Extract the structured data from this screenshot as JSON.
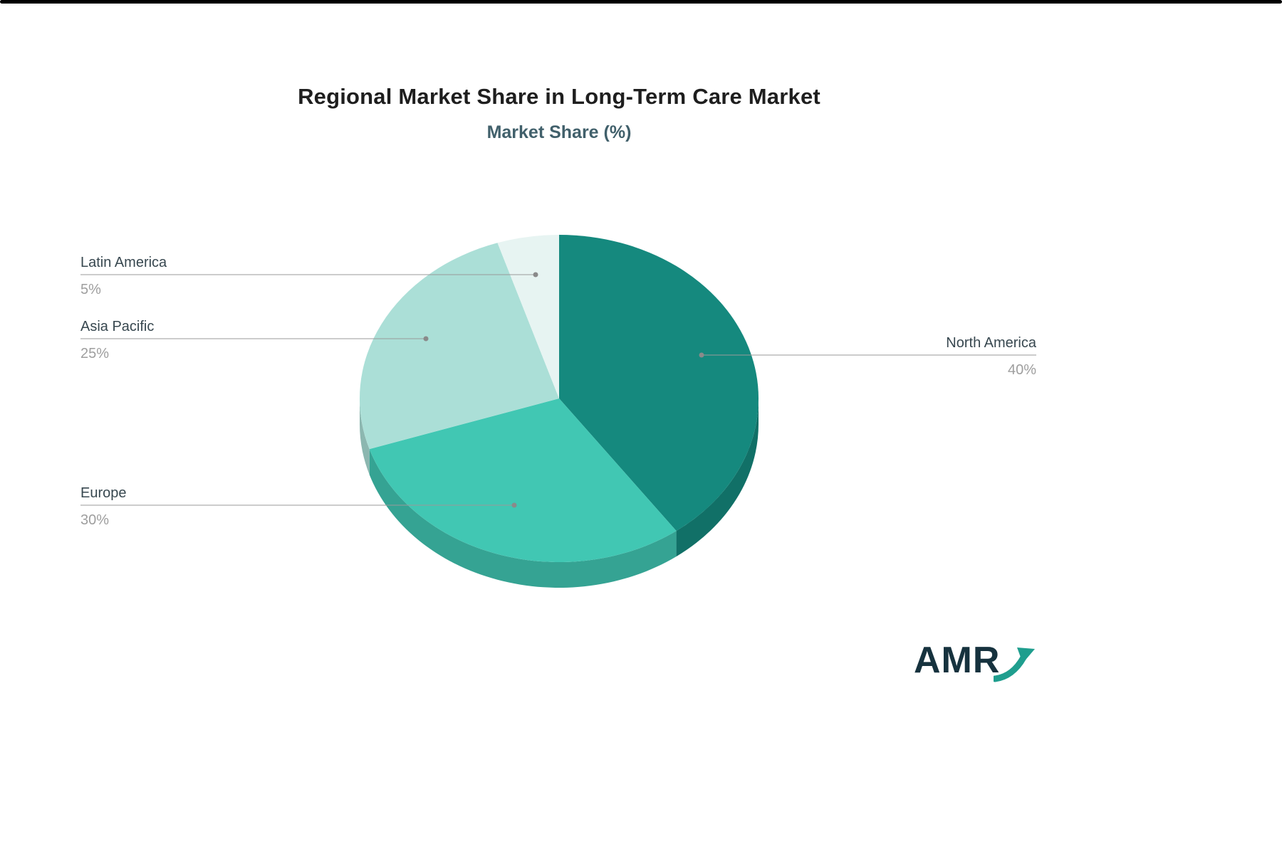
{
  "chart_data": {
    "type": "pie",
    "effect": "3d",
    "title": "Regional Market Share in Long-Term Care Market",
    "subtitle": "Market Share (%)",
    "labels_position": "outside-leader-lines",
    "legend": "none",
    "slices": [
      {
        "label": "North America",
        "value": 40,
        "percent_label": "40%",
        "color": "#15897e"
      },
      {
        "label": "Europe",
        "value": 30,
        "percent_label": "30%",
        "color": "#41c7b3"
      },
      {
        "label": "Asia Pacific",
        "value": 25,
        "percent_label": "25%",
        "color": "#abdfd7"
      },
      {
        "label": "Latin America",
        "value": 5,
        "percent_label": "5%",
        "color": "#e7f4f2"
      }
    ]
  },
  "branding": {
    "logo_text": "AMR"
  },
  "colors": {
    "title": "#1e1e1e",
    "subtitle": "#41606b",
    "label_text": "#37474f",
    "percent_text": "#9e9e9e",
    "leader_line": "#9a9a9a",
    "leader_dot": "#8a8a8a",
    "logo_text": "#16323e",
    "logo_arrow": "#1f9e8e"
  }
}
